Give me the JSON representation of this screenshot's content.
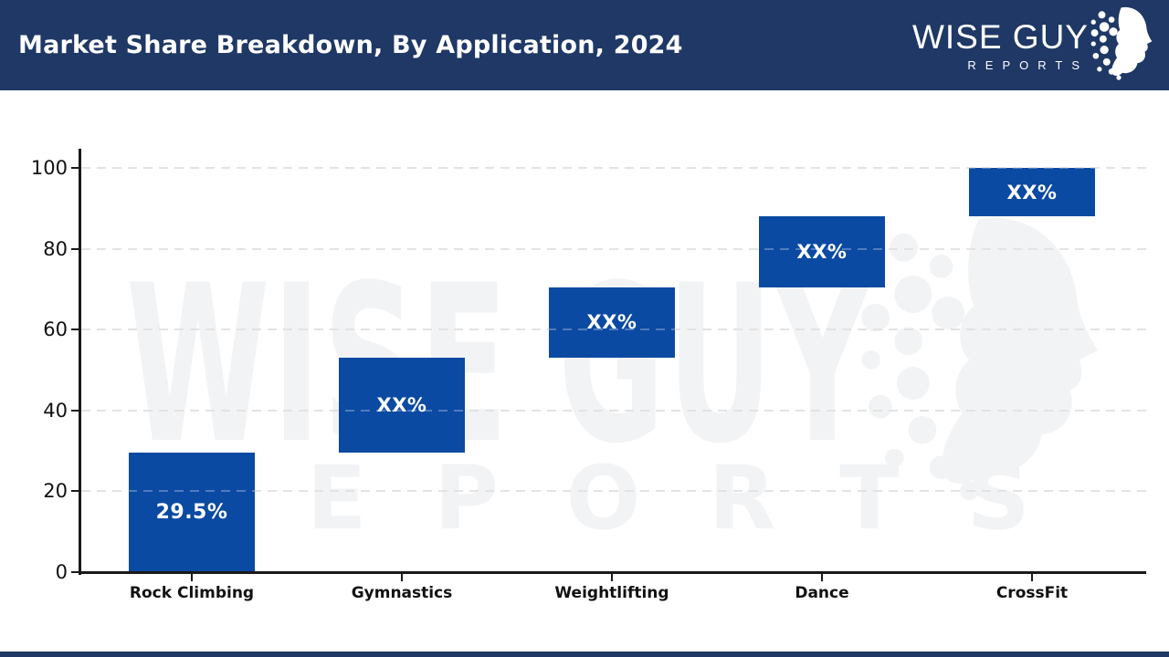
{
  "colors": {
    "header_bg": "#1f3865",
    "bar_fill": "#0b4aa2",
    "grid_line": "#d8d8d8",
    "axis": "#1a1a1a",
    "watermark": "#f2f3f5",
    "bar_label": "#ffffff"
  },
  "header": {
    "title": "Market Share Breakdown, By Application, 2024",
    "logo": {
      "line1": "WISE GUY",
      "line2": "REPORTS"
    }
  },
  "watermark": {
    "line1": "WISE GUY",
    "line2": "REPORTS"
  },
  "chart_data": {
    "type": "bar",
    "subtype": "floating-waterfall",
    "title": "Market Share Breakdown, By Application, 2024",
    "xlabel": "",
    "ylabel": "",
    "categories": [
      "Rock Climbing",
      "Gymnastics",
      "Weightlifting",
      "Dance",
      "CrossFit"
    ],
    "segments": [
      {
        "category": "Rock Climbing",
        "start": 0,
        "end": 29.5,
        "label": "29.5%"
      },
      {
        "category": "Gymnastics",
        "start": 29.5,
        "end": 53,
        "label": "XX%"
      },
      {
        "category": "Weightlifting",
        "start": 53,
        "end": 70.5,
        "label": "XX%"
      },
      {
        "category": "Dance",
        "start": 70.5,
        "end": 88,
        "label": "XX%"
      },
      {
        "category": "CrossFit",
        "start": 88,
        "end": 100,
        "label": "XX%"
      }
    ],
    "ylim": [
      0,
      105
    ],
    "yticks": [
      0,
      20,
      40,
      60,
      80,
      100
    ],
    "grid": "horizontal dashed",
    "legend": "none"
  }
}
